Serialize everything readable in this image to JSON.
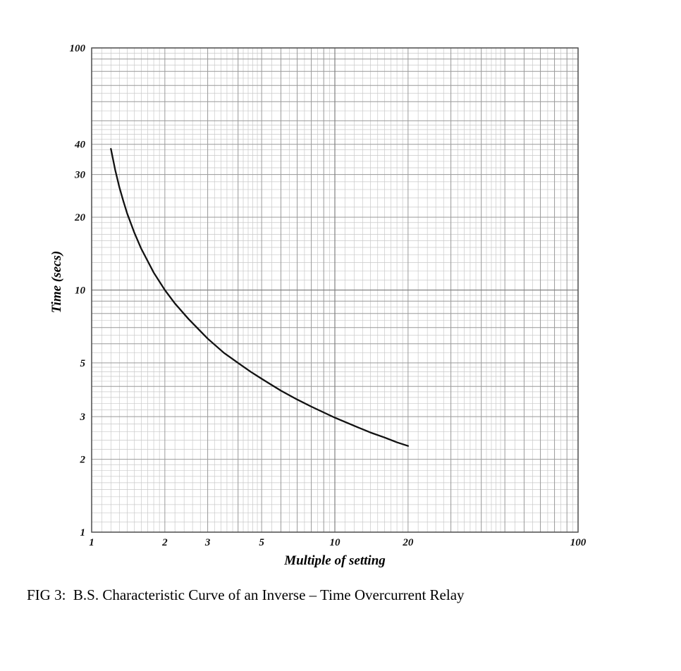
{
  "caption": "FIG 3:  B.S. Characteristic Curve of an Inverse – Time Overcurrent Relay",
  "colors": {
    "curve": "#111111",
    "grid_minor": "#c9c9c9",
    "grid_major": "#9b9b9b",
    "grid_decade": "#818181",
    "plot_border": "#555555",
    "background": "#ffffff"
  },
  "chart_data": {
    "type": "line",
    "title": "",
    "xlabel": "Multiple of setting",
    "ylabel": "Time (secs)",
    "xscale": "log",
    "yscale": "log",
    "xlim": [
      1,
      100
    ],
    "ylim": [
      1,
      100
    ],
    "grid": "on",
    "legend": "none",
    "x_ticks": [
      {
        "value": 1,
        "label": "1"
      },
      {
        "value": 2,
        "label": "2"
      },
      {
        "value": 3,
        "label": "3"
      },
      {
        "value": 5,
        "label": "5"
      },
      {
        "value": 10,
        "label": "10"
      },
      {
        "value": 20,
        "label": "20"
      },
      {
        "value": 100,
        "label": "100"
      }
    ],
    "y_ticks": [
      {
        "value": 1,
        "label": "1"
      },
      {
        "value": 2,
        "label": "2"
      },
      {
        "value": 3,
        "label": "3"
      },
      {
        "value": 5,
        "label": "5"
      },
      {
        "value": 10,
        "label": "10"
      },
      {
        "value": 20,
        "label": "20"
      },
      {
        "value": 30,
        "label": "30"
      },
      {
        "value": 40,
        "label": "40"
      },
      {
        "value": 100,
        "label": "100"
      }
    ],
    "series": [
      {
        "name": "B.S. inverse-time overcurrent relay characteristic",
        "points": [
          [
            1.2,
            38.3
          ],
          [
            1.25,
            31.3
          ],
          [
            1.3,
            26.6
          ],
          [
            1.35,
            23.3
          ],
          [
            1.4,
            20.7
          ],
          [
            1.5,
            17.2
          ],
          [
            1.6,
            14.8
          ],
          [
            1.8,
            11.8
          ],
          [
            2.0,
            10.0
          ],
          [
            2.2,
            8.8
          ],
          [
            2.5,
            7.6
          ],
          [
            3.0,
            6.3
          ],
          [
            3.5,
            5.5
          ],
          [
            4.0,
            5.0
          ],
          [
            4.5,
            4.6
          ],
          [
            5.0,
            4.3
          ],
          [
            6.0,
            3.84
          ],
          [
            7.0,
            3.53
          ],
          [
            8.0,
            3.3
          ],
          [
            10,
            2.97
          ],
          [
            12,
            2.75
          ],
          [
            14,
            2.58
          ],
          [
            16,
            2.46
          ],
          [
            18,
            2.35
          ],
          [
            20,
            2.27
          ]
        ]
      }
    ]
  }
}
